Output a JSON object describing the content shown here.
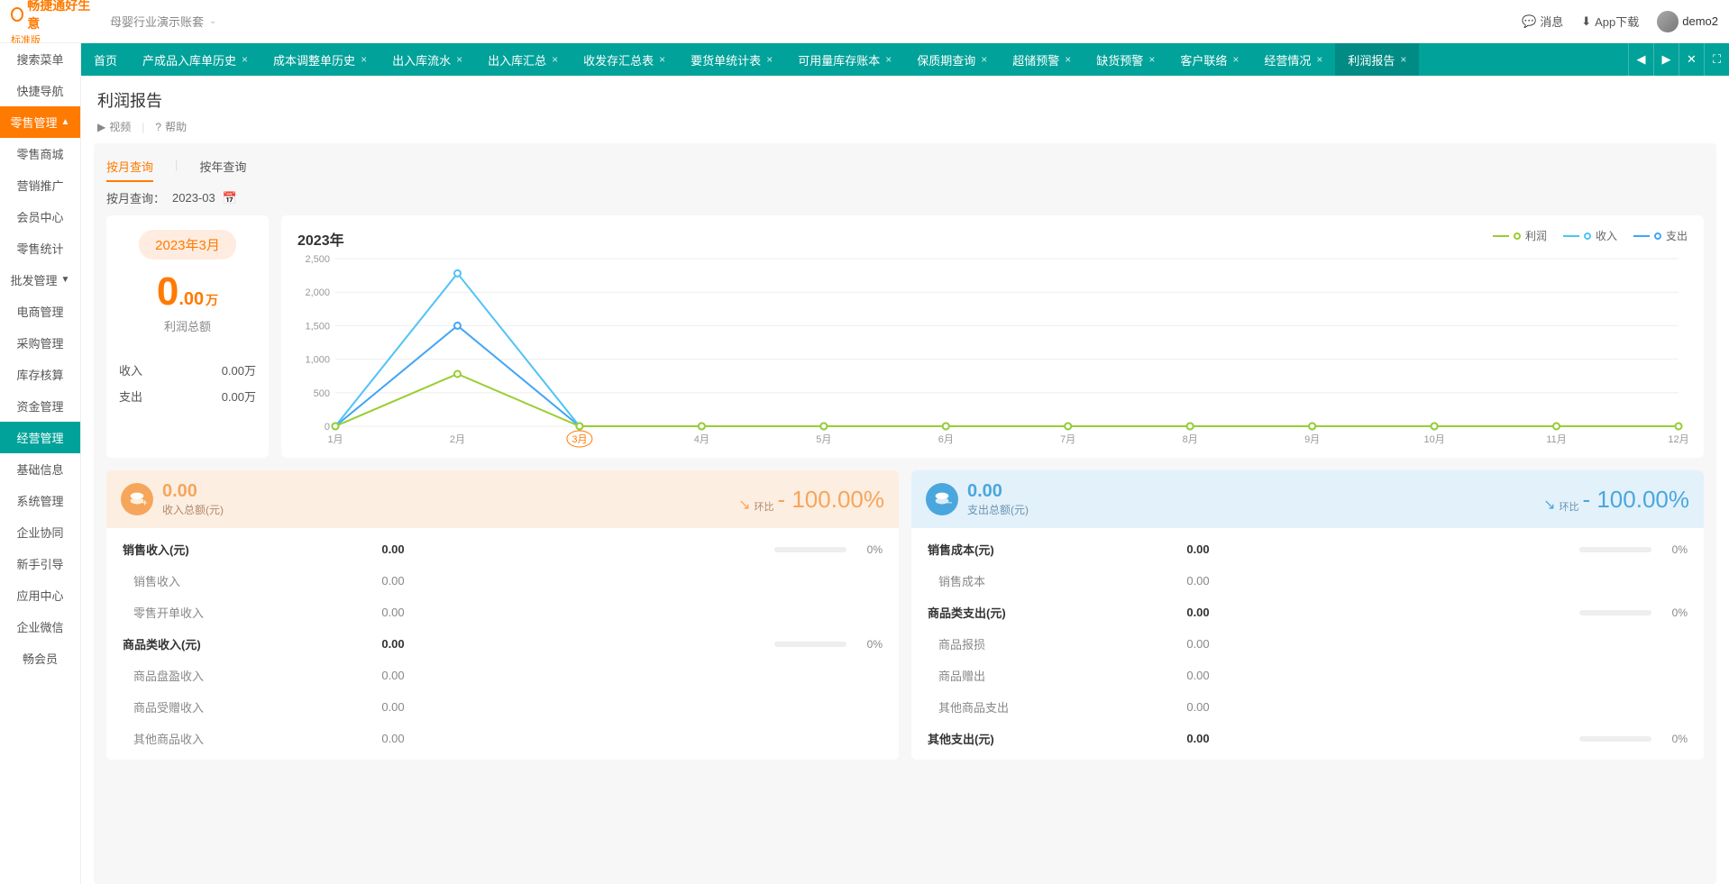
{
  "header": {
    "logo_text": "畅捷通好生意",
    "logo_sub": "标准版",
    "account_name": "母婴行业演示账套",
    "msg": "消息",
    "app": "App下载",
    "user": "demo2"
  },
  "sidebar": {
    "items": [
      {
        "label": "搜索菜单"
      },
      {
        "label": "快捷导航"
      },
      {
        "label": "零售管理",
        "active": true,
        "caret": "▲"
      },
      {
        "label": "零售商城"
      },
      {
        "label": "营销推广"
      },
      {
        "label": "会员中心"
      },
      {
        "label": "零售统计"
      },
      {
        "label": "批发管理",
        "caret": "▼"
      },
      {
        "label": "电商管理"
      },
      {
        "label": "采购管理"
      },
      {
        "label": "库存核算"
      },
      {
        "label": "资金管理"
      },
      {
        "label": "经营管理",
        "active2": true
      },
      {
        "label": "基础信息"
      },
      {
        "label": "系统管理"
      },
      {
        "label": "企业协同"
      },
      {
        "label": "新手引导"
      },
      {
        "label": "应用中心"
      },
      {
        "label": "企业微信"
      },
      {
        "label": "畅会员"
      }
    ]
  },
  "tabs": {
    "items": [
      {
        "label": "首页",
        "closable": false
      },
      {
        "label": "产成品入库单历史",
        "closable": true
      },
      {
        "label": "成本调整单历史",
        "closable": true
      },
      {
        "label": "出入库流水",
        "closable": true
      },
      {
        "label": "出入库汇总",
        "closable": true
      },
      {
        "label": "收发存汇总表",
        "closable": true
      },
      {
        "label": "要货单统计表",
        "closable": true
      },
      {
        "label": "可用量库存账本",
        "closable": true
      },
      {
        "label": "保质期查询",
        "closable": true
      },
      {
        "label": "超储预警",
        "closable": true
      },
      {
        "label": "缺货预警",
        "closable": true
      },
      {
        "label": "客户联络",
        "closable": true
      },
      {
        "label": "经营情况",
        "closable": true
      },
      {
        "label": "利润报告",
        "closable": true,
        "active": true
      }
    ]
  },
  "page": {
    "title": "利润报告",
    "video": "视频",
    "help": "帮助",
    "subtab_month": "按月查询",
    "subtab_year": "按年查询",
    "q_label": "按月查询：",
    "q_value": "2023-03"
  },
  "summary": {
    "period": "2023年3月",
    "big_int": "0",
    "big_dec": ".00",
    "big_unit": "万",
    "profit_label": "利润总额",
    "income_label": "收入",
    "income_value": "0.00万",
    "expense_label": "支出",
    "expense_value": "0.00万"
  },
  "chart": {
    "title": "2023年",
    "legend": [
      {
        "name": "利润",
        "color": "#9acd32"
      },
      {
        "name": "收入",
        "color": "#4fc3f7"
      },
      {
        "name": "支出",
        "color": "#42a5f5"
      }
    ],
    "y_ticks": [
      "2,500",
      "2,000",
      "1,500",
      "1,000",
      "500",
      "0"
    ],
    "x_labels": [
      "1月",
      "2月",
      "3月",
      "4月",
      "5月",
      "6月",
      "7月",
      "8月",
      "9月",
      "10月",
      "11月",
      "12月"
    ],
    "x_active_index": 2,
    "series": {
      "profit": [
        0,
        780,
        0,
        0,
        0,
        0,
        0,
        0,
        0,
        0,
        0,
        0
      ],
      "income": [
        0,
        2280,
        0,
        0,
        0,
        0,
        0,
        0,
        0,
        0,
        0,
        0
      ],
      "expense": [
        0,
        1500,
        0,
        0,
        0,
        0,
        0,
        0,
        0,
        0,
        0,
        0
      ]
    },
    "ymax": 2500,
    "expense_data_cutoff": 9,
    "colors": {
      "grid": "#eeeeee",
      "axis_text": "#999999",
      "bg": "#ffffff"
    }
  },
  "income_panel": {
    "amount": "0.00",
    "label": "收入总额(元)",
    "trend_label": "环比",
    "trend_pct": "- 100.00%",
    "rows": [
      {
        "label": "销售收入(元)",
        "value": "0.00",
        "pct": "0%",
        "bold": true
      },
      {
        "label": "销售收入",
        "value": "0.00",
        "sub": true
      },
      {
        "label": "零售开单收入",
        "value": "0.00",
        "sub": true
      },
      {
        "label": "商品类收入(元)",
        "value": "0.00",
        "pct": "0%",
        "bold": true
      },
      {
        "label": "商品盘盈收入",
        "value": "0.00",
        "sub": true
      },
      {
        "label": "商品受赠收入",
        "value": "0.00",
        "sub": true
      },
      {
        "label": "其他商品收入",
        "value": "0.00",
        "sub": true
      }
    ]
  },
  "expense_panel": {
    "amount": "0.00",
    "label": "支出总额(元)",
    "trend_label": "环比",
    "trend_pct": "- 100.00%",
    "rows": [
      {
        "label": "销售成本(元)",
        "value": "0.00",
        "pct": "0%",
        "bold": true
      },
      {
        "label": "销售成本",
        "value": "0.00",
        "sub": true
      },
      {
        "label": "商品类支出(元)",
        "value": "0.00",
        "pct": "0%",
        "bold": true
      },
      {
        "label": "商品报损",
        "value": "0.00",
        "sub": true
      },
      {
        "label": "商品赠出",
        "value": "0.00",
        "sub": true
      },
      {
        "label": "其他商品支出",
        "value": "0.00",
        "sub": true
      },
      {
        "label": "其他支出(元)",
        "value": "0.00",
        "pct": "0%",
        "bold": true
      }
    ]
  }
}
